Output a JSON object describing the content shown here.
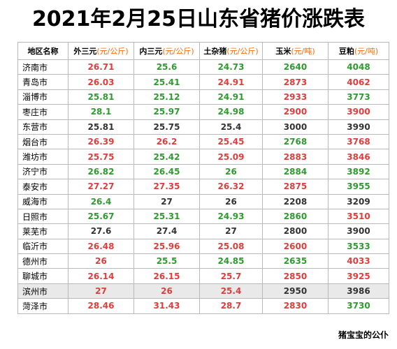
{
  "title": "2021年2月25日山东省猪价涨跌表",
  "colors": {
    "up": "#e03c3c",
    "down": "#2f9a2f",
    "flat": "#333333",
    "unit": "#ff6a00"
  },
  "headers": [
    {
      "name": "地区名称",
      "unit": ""
    },
    {
      "name": "外三元",
      "unit": "(元/公斤)"
    },
    {
      "name": "内三元",
      "unit": "(元/公斤)"
    },
    {
      "name": "土杂猪",
      "unit": "(元/公斤)"
    },
    {
      "name": "玉米",
      "unit": "(元/吨)"
    },
    {
      "name": "豆粕",
      "unit": "(元/吨)"
    }
  ],
  "rows": [
    {
      "region": "济南市",
      "cells": [
        [
          "26.71",
          "red"
        ],
        [
          "25.6",
          "green"
        ],
        [
          "24.73",
          "green"
        ],
        [
          "2640",
          "green"
        ],
        [
          "4048",
          "green"
        ]
      ]
    },
    {
      "region": "青岛市",
      "cells": [
        [
          "26.03",
          "red"
        ],
        [
          "25.41",
          "green"
        ],
        [
          "24.91",
          "red"
        ],
        [
          "2873",
          "red"
        ],
        [
          "4062",
          "red"
        ]
      ]
    },
    {
      "region": "淄博市",
      "cells": [
        [
          "25.81",
          "green"
        ],
        [
          "25.12",
          "green"
        ],
        [
          "24.91",
          "green"
        ],
        [
          "2933",
          "red"
        ],
        [
          "3773",
          "green"
        ]
      ]
    },
    {
      "region": "枣庄市",
      "cells": [
        [
          "28.1",
          "green"
        ],
        [
          "25.97",
          "green"
        ],
        [
          "24.98",
          "green"
        ],
        [
          "2900",
          "red"
        ],
        [
          "3900",
          "red"
        ]
      ]
    },
    {
      "region": "东营市",
      "cells": [
        [
          "25.81",
          "black"
        ],
        [
          "25.75",
          "black"
        ],
        [
          "25.4",
          "black"
        ],
        [
          "3000",
          "black"
        ],
        [
          "3990",
          "black"
        ]
      ]
    },
    {
      "region": "烟台市",
      "cells": [
        [
          "26.39",
          "red"
        ],
        [
          "26.2",
          "red"
        ],
        [
          "25.45",
          "red"
        ],
        [
          "2768",
          "green"
        ],
        [
          "3768",
          "red"
        ]
      ]
    },
    {
      "region": "潍坊市",
      "cells": [
        [
          "25.75",
          "red"
        ],
        [
          "25.42",
          "green"
        ],
        [
          "25.09",
          "red"
        ],
        [
          "2883",
          "red"
        ],
        [
          "3846",
          "red"
        ]
      ]
    },
    {
      "region": "济宁市",
      "cells": [
        [
          "26.82",
          "green"
        ],
        [
          "26.45",
          "green"
        ],
        [
          "26",
          "green"
        ],
        [
          "2884",
          "green"
        ],
        [
          "3892",
          "green"
        ]
      ]
    },
    {
      "region": "泰安市",
      "cells": [
        [
          "27.27",
          "red"
        ],
        [
          "27.35",
          "red"
        ],
        [
          "26.32",
          "red"
        ],
        [
          "2875",
          "red"
        ],
        [
          "3955",
          "green"
        ]
      ]
    },
    {
      "region": "威海市",
      "cells": [
        [
          "26.4",
          "green"
        ],
        [
          "27",
          "black"
        ],
        [
          "26",
          "black"
        ],
        [
          "2208",
          "black"
        ],
        [
          "3209",
          "black"
        ]
      ]
    },
    {
      "region": "日照市",
      "cells": [
        [
          "25.67",
          "green"
        ],
        [
          "25.31",
          "green"
        ],
        [
          "24.93",
          "green"
        ],
        [
          "2860",
          "green"
        ],
        [
          "3510",
          "red"
        ]
      ]
    },
    {
      "region": "莱芜市",
      "cells": [
        [
          "27.6",
          "black"
        ],
        [
          "27.4",
          "black"
        ],
        [
          "27",
          "black"
        ],
        [
          "2800",
          "black"
        ],
        [
          "3900",
          "black"
        ]
      ]
    },
    {
      "region": "临沂市",
      "cells": [
        [
          "26.48",
          "red"
        ],
        [
          "25.96",
          "red"
        ],
        [
          "25.08",
          "red"
        ],
        [
          "2600",
          "red"
        ],
        [
          "3533",
          "green"
        ]
      ]
    },
    {
      "region": "德州市",
      "cells": [
        [
          "26",
          "red"
        ],
        [
          "25.5",
          "green"
        ],
        [
          "24.85",
          "green"
        ],
        [
          "2635",
          "green"
        ],
        [
          "4033",
          "red"
        ]
      ]
    },
    {
      "region": "聊城市",
      "cells": [
        [
          "26.14",
          "red"
        ],
        [
          "26.15",
          "red"
        ],
        [
          "25.7",
          "red"
        ],
        [
          "2850",
          "red"
        ],
        [
          "3925",
          "red"
        ]
      ]
    },
    {
      "region": "滨州市",
      "cells": [
        [
          "27",
          "red"
        ],
        [
          "26",
          "red"
        ],
        [
          "25.4",
          "red"
        ],
        [
          "2950",
          "black"
        ],
        [
          "3986",
          "black"
        ]
      ]
    },
    {
      "region": "菏泽市",
      "cells": [
        [
          "28.46",
          "red"
        ],
        [
          "31.43",
          "red"
        ],
        [
          "28.7",
          "red"
        ],
        [
          "2830",
          "red"
        ],
        [
          "3730",
          "green"
        ]
      ]
    }
  ],
  "footer": "猪宝宝的公仆"
}
